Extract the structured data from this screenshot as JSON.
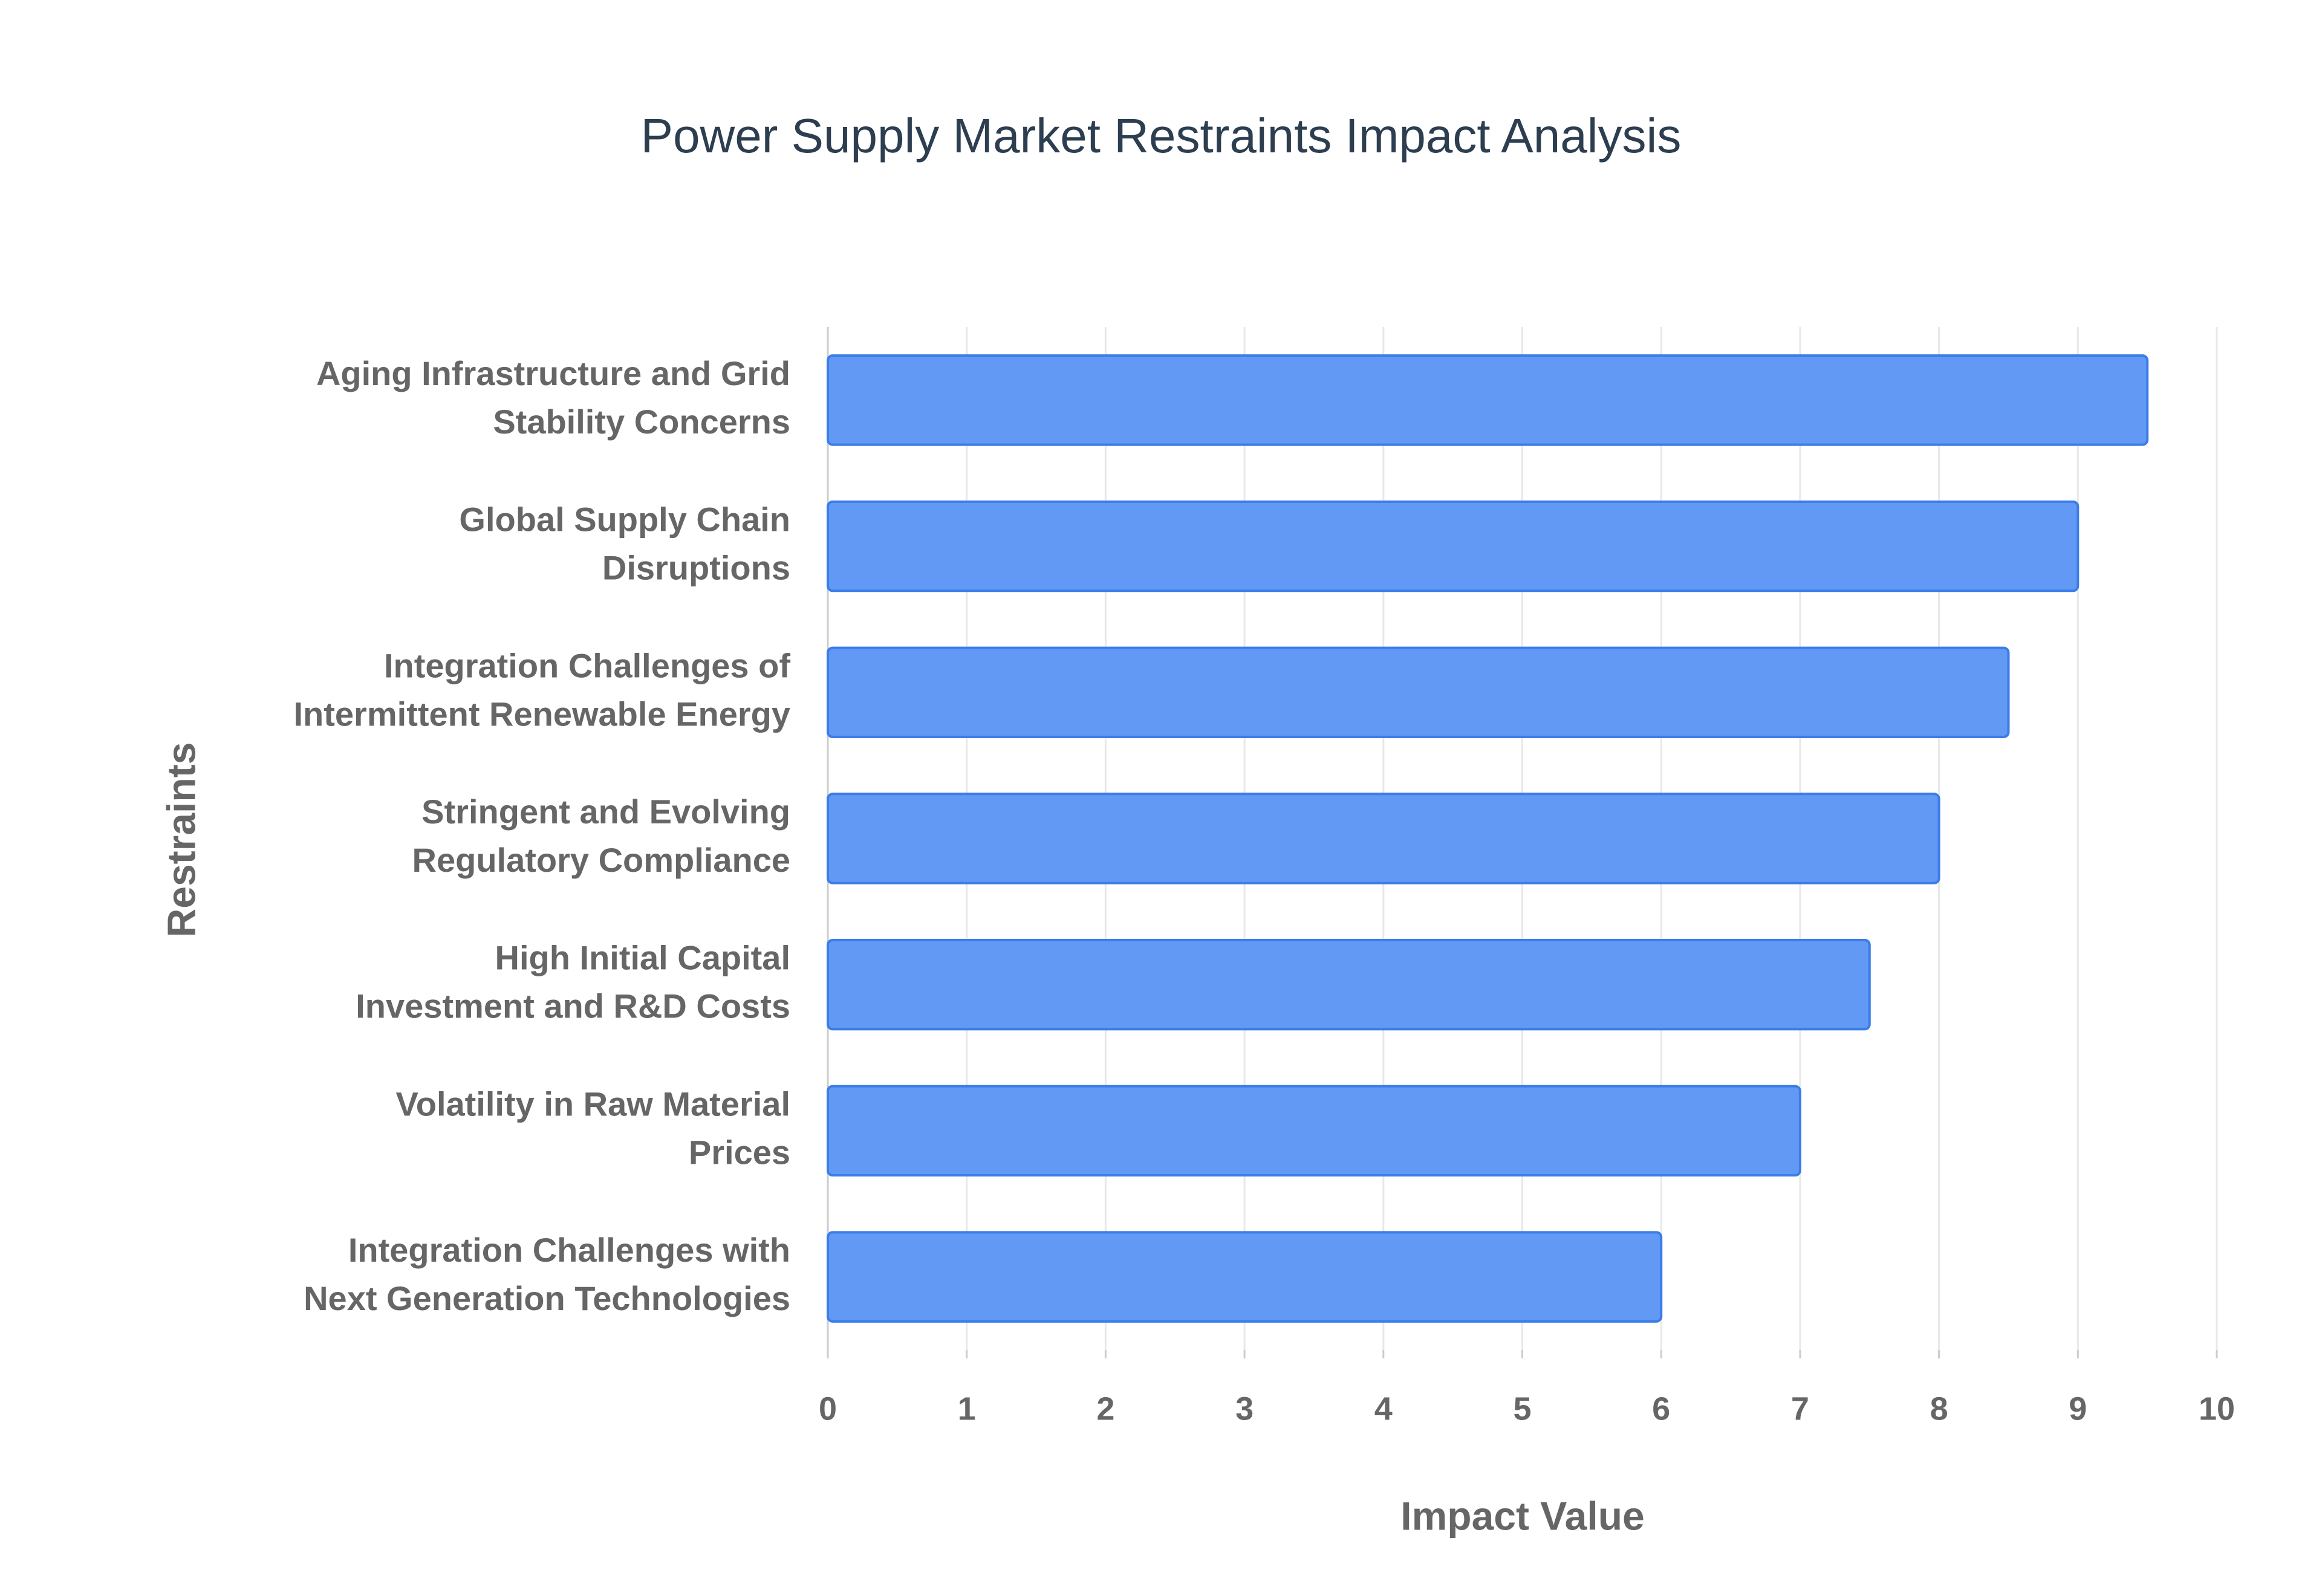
{
  "chart_data": {
    "type": "bar",
    "orientation": "horizontal",
    "title": "Power Supply Market Restraints Impact Analysis",
    "x_label": "Impact Value",
    "y_label": "Restraints",
    "categories": [
      [
        "Aging Infrastructure and Grid",
        "Stability Concerns"
      ],
      [
        "Global Supply Chain",
        "Disruptions"
      ],
      [
        "Integration Challenges of",
        "Intermittent Renewable Energy"
      ],
      [
        "Stringent and Evolving",
        "Regulatory Compliance"
      ],
      [
        "High Initial Capital",
        "Investment and R&D Costs"
      ],
      [
        "Volatility in Raw Material",
        "Prices"
      ],
      [
        "Integration Challenges with",
        "Next Generation Technologies"
      ]
    ],
    "values": [
      9.5,
      9,
      8.5,
      8,
      7.5,
      7,
      6
    ],
    "color": "#6199f4",
    "edge_color": "#3b7de8",
    "xlim": [
      0,
      10
    ],
    "xticks": [
      0,
      1,
      2,
      3,
      4,
      5,
      6,
      7,
      8,
      9,
      10
    ],
    "grid": true
  }
}
